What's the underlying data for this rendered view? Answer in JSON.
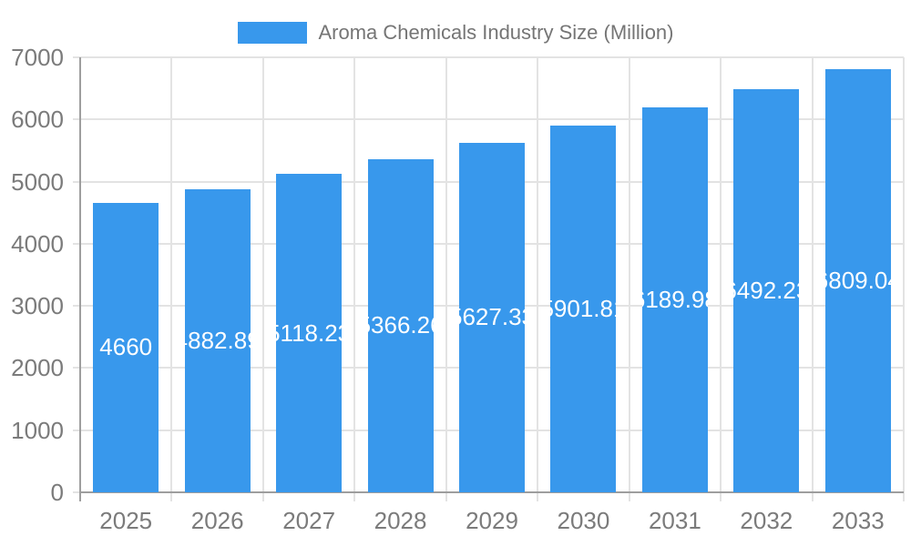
{
  "chart_data": {
    "type": "bar",
    "title": "Aroma Chemicals Industry Size (Million)",
    "legend_position": "top",
    "categories": [
      "2025",
      "2026",
      "2027",
      "2028",
      "2029",
      "2030",
      "2031",
      "2032",
      "2033"
    ],
    "series": [
      {
        "name": "Aroma Chemicals Industry Size (Million)",
        "values": [
          4660,
          4882.89,
          5118.23,
          5366.26,
          5627.33,
          5901.81,
          6189.98,
          6492.23,
          6809.04
        ],
        "value_labels": [
          "4660",
          "4882.89",
          "5118.23",
          "5366.26",
          "5627.33",
          "5901.81",
          "6189.98",
          "6492.23",
          "6809.04"
        ],
        "color": "#3898EC"
      }
    ],
    "xlabel": "",
    "ylabel": "",
    "ylim": [
      0,
      7000
    ],
    "ytick_step": 1000,
    "ytick_labels": [
      "0",
      "1000",
      "2000",
      "3000",
      "4000",
      "5000",
      "6000",
      "7000"
    ],
    "grid": true,
    "value_labels_shown": true,
    "value_label_color": "#FFFFFF",
    "colors": {
      "bar": "#3898EC",
      "grid_line": "#E3E3E3",
      "axis_line": "#9E9E9E",
      "tick_text": "#7B7B7B",
      "legend_text": "#757575",
      "background": "#FFFFFF"
    }
  }
}
